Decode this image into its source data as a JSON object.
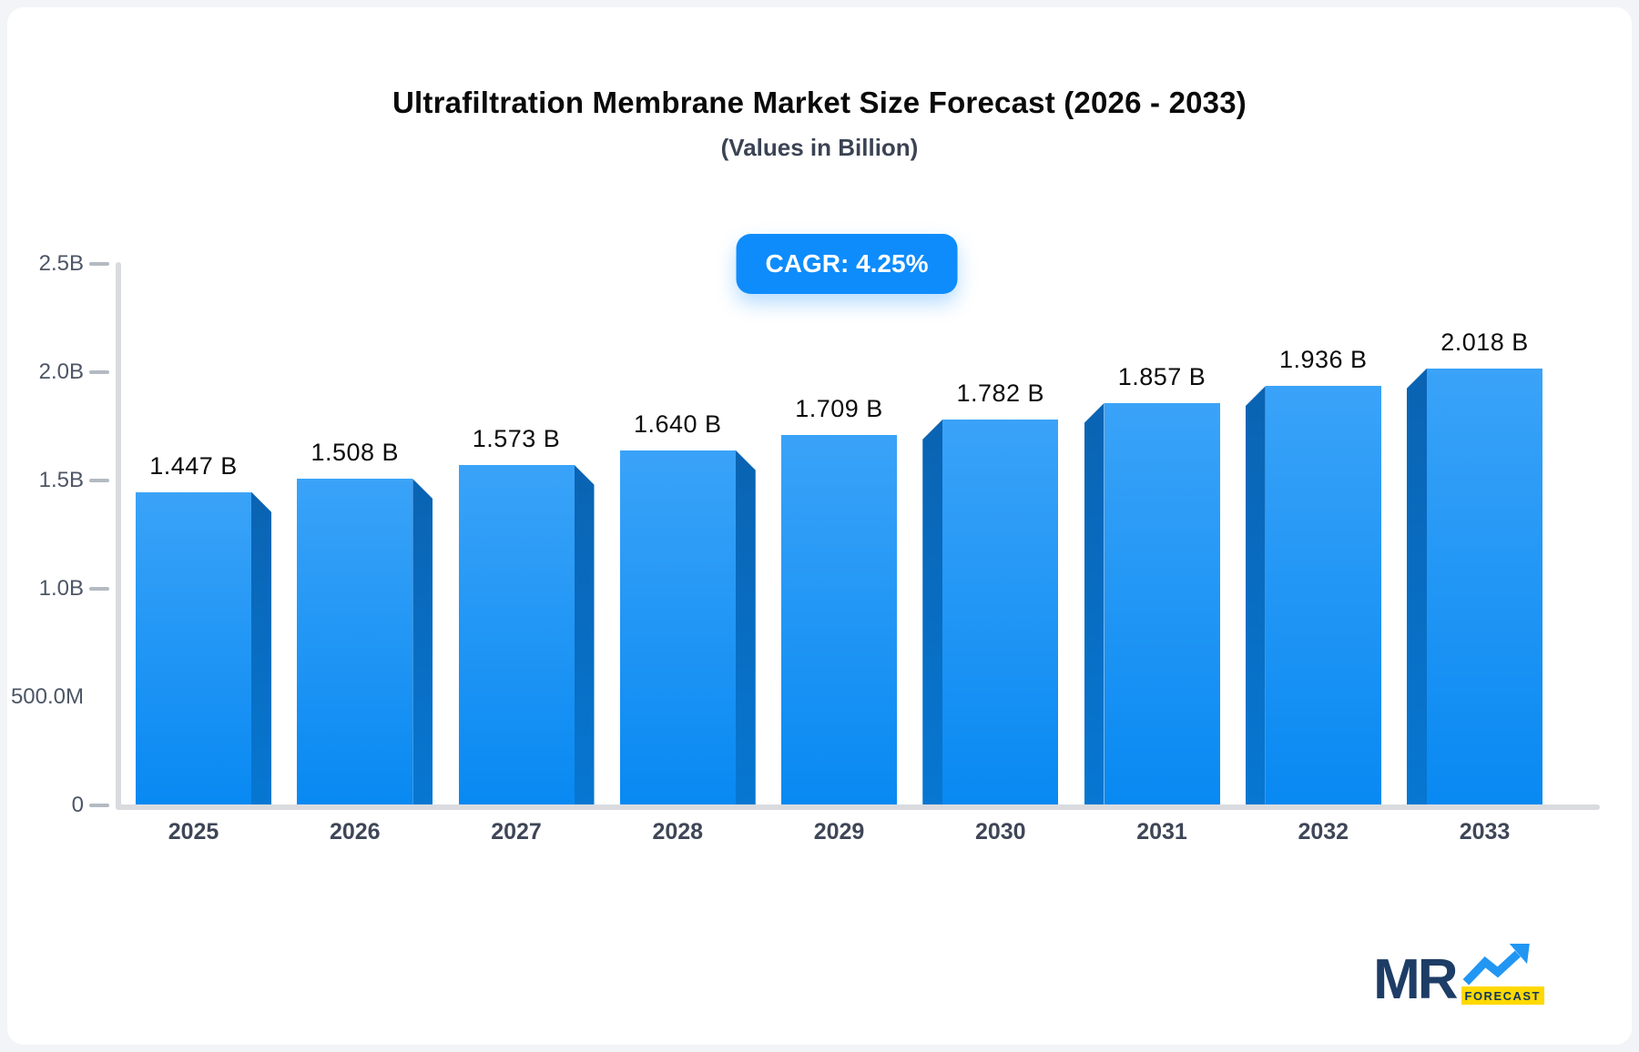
{
  "page": {
    "background": "#f3f4f7",
    "card_background": "#ffffff"
  },
  "header": {
    "title": "Ultrafiltration Membrane Market Size Forecast (2026 - 2033)",
    "subtitle": "(Values in Billion)",
    "cagr_badge": {
      "label": "CAGR: 4.25%",
      "background": "#0e8cfc",
      "text_color": "#ffffff"
    }
  },
  "chart_data": {
    "type": "bar",
    "title": "Ultrafiltration Membrane Market Size Forecast (2026 - 2033)",
    "subtitle": "(Values in Billion)",
    "categories": [
      "2025",
      "2026",
      "2027",
      "2028",
      "2029",
      "2030",
      "2031",
      "2032",
      "2033"
    ],
    "values": [
      1.447,
      1.508,
      1.573,
      1.64,
      1.709,
      1.782,
      1.857,
      1.936,
      2.018
    ],
    "bar_labels": [
      "1.447 B",
      "1.508 B",
      "1.573 B",
      "1.640 B",
      "1.709 B",
      "1.782 B",
      "1.857 B",
      "1.936 B",
      "2.018 B"
    ],
    "unit": "Billion",
    "ylim": [
      0,
      2.5
    ],
    "yticks": [
      {
        "label": "2.5B",
        "value": 2.5,
        "dash": true
      },
      {
        "label": "2.0B",
        "value": 2.0,
        "dash": true
      },
      {
        "label": "1.5B",
        "value": 1.5,
        "dash": true
      },
      {
        "label": "1.0B",
        "value": 1.0,
        "dash": true
      },
      {
        "label": "500.0M",
        "value": 0.5,
        "dash": false
      },
      {
        "label": "0",
        "value": 0.0,
        "dash": true
      }
    ],
    "grid": false,
    "legend": false,
    "colors": {
      "bar_face_top": "#3aa3f8",
      "bar_face_bottom": "#0889f2",
      "bar_side_top": "#0a63b2",
      "bar_side_bottom": "#0777d2",
      "axis": "#d9dbdf",
      "tick_dash": "#b3bac2",
      "y_label": "#4d5666",
      "x_label": "#3e4657",
      "value_label": "#0d0d0d"
    }
  },
  "logo": {
    "mr_text": "MR",
    "forecast_text": "FORECAST",
    "navy": "#1d3d66",
    "yellow": "#ffd900",
    "arrow_color": "#2196f3",
    "arrow_icon": "trending-up-arrow"
  }
}
